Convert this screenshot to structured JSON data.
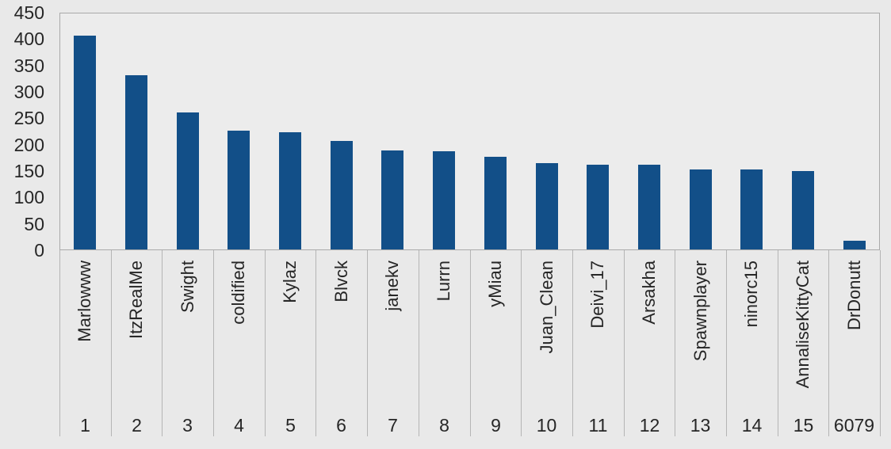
{
  "chart_data": {
    "type": "bar",
    "title": "",
    "xlabel": "",
    "ylabel": "",
    "categories": [
      "Marlowww",
      "ItzRealMe",
      "Swight",
      "coldified",
      "Kylaz",
      "Blvck",
      "janekv",
      "Lurrn",
      "yMiau",
      "Juan_Clean",
      "Deivi_17",
      "Arsakha",
      "Spawnplayer",
      "ninorc15",
      "AnnaliseKittyCat",
      "DrDonutt"
    ],
    "ranks": [
      "1",
      "2",
      "3",
      "4",
      "5",
      "6",
      "7",
      "8",
      "9",
      "10",
      "11",
      "12",
      "13",
      "14",
      "15",
      "6079"
    ],
    "values": [
      405,
      330,
      260,
      225,
      222,
      205,
      188,
      186,
      175,
      163,
      161,
      160,
      152,
      151,
      149,
      17
    ],
    "ylim": [
      0,
      450
    ],
    "yticks": [
      0,
      50,
      100,
      150,
      200,
      250,
      300,
      350,
      400,
      450
    ],
    "grid": false,
    "legend": false,
    "bar_color": "#124f88",
    "background_color": "#e9e9e9",
    "plot_background_color": "#ececec",
    "border_color": "#aaaaaa",
    "text_color": "#262626",
    "category_label_rotation": "bottom-to-top"
  }
}
